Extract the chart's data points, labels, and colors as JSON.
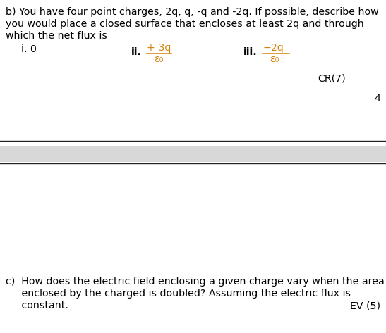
{
  "bg_color": "#ffffff",
  "text_color": "#000000",
  "orange_color": "#d4820a",
  "line1_b": "b) You have four point charges, 2q, q, -q and -2q. If possible, describe how",
  "line2_b": "you would place a closed surface that encloses at least 2q and through",
  "line3_b": "which the net flux is",
  "label_i": "i. 0",
  "label_ii_prefix": "ii.",
  "label_ii_num": "+ 3q",
  "label_ii_den": "ε₀",
  "label_iii_prefix": "iii.",
  "label_iii_num": "−2q",
  "label_iii_den": "ε₀",
  "cr_label": "CR(7)",
  "page_num": "4",
  "line_c1": "c)  How does the electric field enclosing a given charge vary when the area",
  "line_c2": "     enclosed by the charged is doubled? Assuming the electric flux is",
  "line_c3": "     constant.",
  "ev_label": "EV (5)",
  "main_fontsize": 10.2
}
